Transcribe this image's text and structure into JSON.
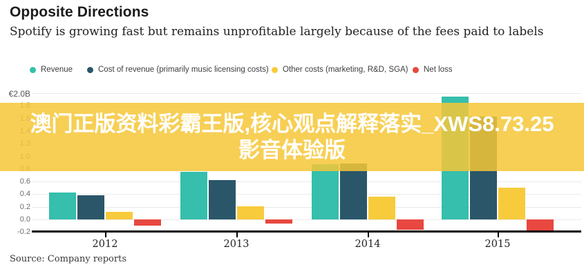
{
  "header": {
    "title": "Opposite Directions",
    "subtitle": "Spotify is growing fast but remains unprofitable largely because of the fees paid to labels"
  },
  "overlay": {
    "line1": "澳门正版资料彩霸王版,核心观点解释落实_XWS8.73.25",
    "line2": "影音体验版",
    "bg": "rgba(246,199,55,0.85)",
    "text_color": "#ffffff"
  },
  "legend": [
    {
      "label": "Revenue",
      "color": "#35BFAC"
    },
    {
      "label": "Cost of revenue (primarily music licensing costs)",
      "color": "#2B5669"
    },
    {
      "label": "Other costs (marketing, R&D, SGA)",
      "color": "#F8CB3C"
    },
    {
      "label": "Net loss",
      "color": "#E84840"
    }
  ],
  "chart_data": {
    "type": "bar",
    "title": "Opposite Directions",
    "subtitle": "Spotify is growing fast but remains unprofitable largely because of the fees paid to labels",
    "categories": [
      "2012",
      "2013",
      "2014",
      "2015"
    ],
    "series": [
      {
        "name": "Revenue",
        "color": "#35BFAC",
        "values": [
          0.43,
          0.75,
          0.87,
          1.95
        ]
      },
      {
        "name": "Cost of revenue (primarily music licensing costs)",
        "color": "#2B5669",
        "values": [
          0.38,
          0.62,
          0.88,
          1.63
        ]
      },
      {
        "name": "Other costs (marketing, R&D, SGA)",
        "color": "#F8CB3C",
        "values": [
          0.12,
          0.21,
          0.36,
          0.5
        ]
      },
      {
        "name": "Net loss",
        "color": "#E84840",
        "values": [
          -0.1,
          -0.07,
          -0.16,
          -0.18
        ]
      }
    ],
    "currency_unit": "€B",
    "ylim": [
      -0.2,
      2.0
    ],
    "grid": true,
    "legend_position": "top",
    "yticks": [
      {
        "label": "€2.0B",
        "value": 2.0
      },
      {
        "label": "1.8",
        "value": 1.8
      },
      {
        "label": "1.6",
        "value": 1.6
      },
      {
        "label": "1.4",
        "value": 1.4
      },
      {
        "label": "1.2",
        "value": 1.2
      },
      {
        "label": "1.0",
        "value": 1.0
      },
      {
        "label": "0.8",
        "value": 0.8
      },
      {
        "label": "0.6",
        "value": 0.6
      },
      {
        "label": "0.4",
        "value": 0.4
      },
      {
        "label": "0.2",
        "value": 0.2
      },
      {
        "label": "0.0",
        "value": 0.0
      },
      {
        "label": "-0.2",
        "value": -0.2
      }
    ]
  },
  "footer": {
    "source": "Source: Company reports"
  }
}
